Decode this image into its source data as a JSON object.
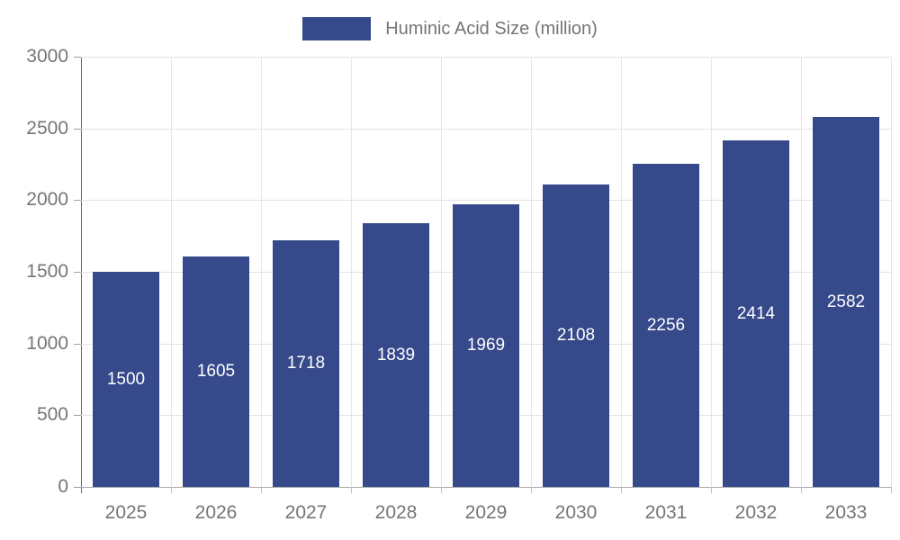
{
  "legend": {
    "label": "Huminic Acid Size (million)"
  },
  "chart_data": {
    "type": "bar",
    "title": "Huminic Acid Size (million)",
    "categories": [
      "2025",
      "2026",
      "2027",
      "2028",
      "2029",
      "2030",
      "2031",
      "2032",
      "2033"
    ],
    "series": [
      {
        "name": "Huminic Acid Size (million)",
        "values": [
          1500,
          1605,
          1718,
          1839,
          1969,
          2108,
          2256,
          2414,
          2582
        ]
      }
    ],
    "value_labels": [
      "1500",
      "1605",
      "1718",
      "1839",
      "1969",
      "2108",
      "2256",
      "2414",
      "2582"
    ],
    "xlabel": "",
    "ylabel": "",
    "ylim": [
      0,
      3000
    ],
    "yticks": [
      0,
      500,
      1000,
      1500,
      2000,
      2500,
      3000
    ],
    "grid": true,
    "legend_position": "top-center",
    "colors": {
      "bar": "#36498b",
      "value_label": "#ffffff",
      "tick_label": "#757575",
      "gridline": "#e3e3e3",
      "axis_line": "#6b6b6b"
    }
  }
}
